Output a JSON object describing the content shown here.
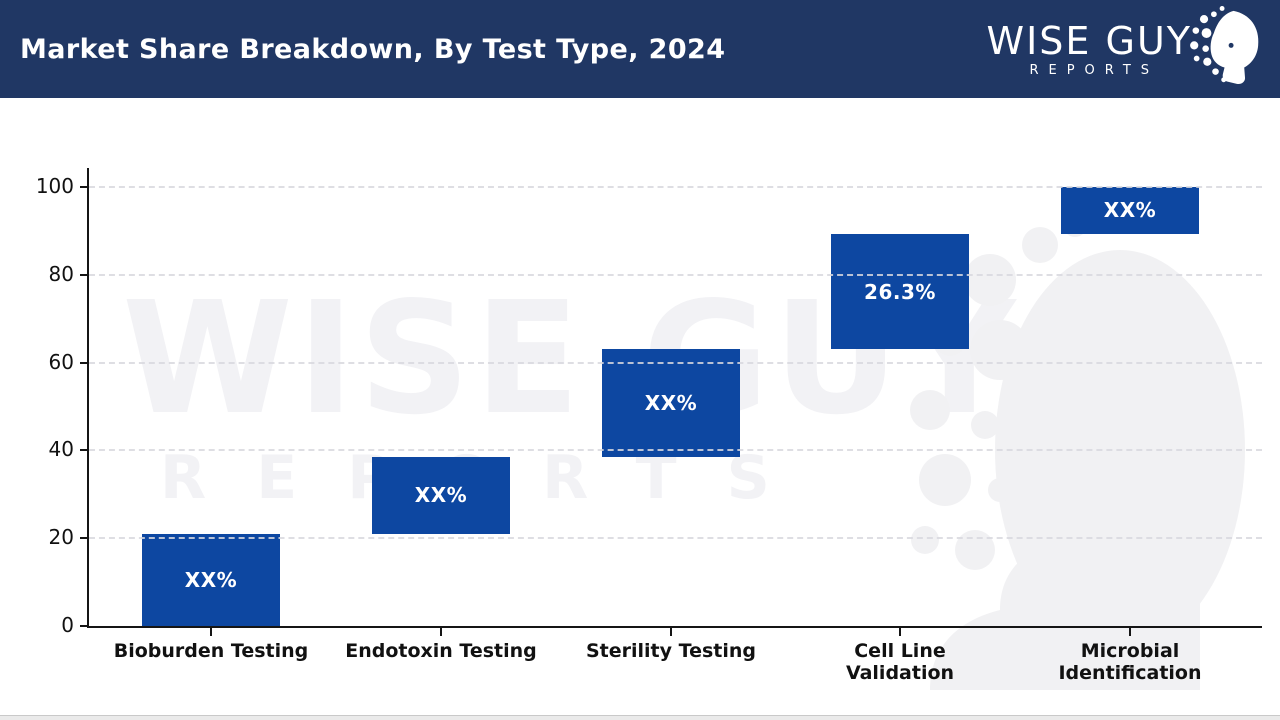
{
  "header": {
    "title": "Market Share Breakdown, By Test Type, 2024",
    "bg_color": "#203764",
    "logo": {
      "line1": "WISE GUY",
      "line2": "REPORTS"
    }
  },
  "watermark": {
    "line1": "WISE GUY",
    "line2": "REPORTS"
  },
  "chart_data": {
    "type": "bar",
    "subtype": "waterfall",
    "title": "Market Share Breakdown, By Test Type, 2024",
    "categories": [
      "Bioburden Testing",
      "Endotoxin Testing",
      "Sterility Testing",
      "Cell Line Validation",
      "Microbial Identification"
    ],
    "category_label_lines": [
      [
        "Bioburden Testing"
      ],
      [
        "Endotoxin Testing"
      ],
      [
        "Sterility Testing"
      ],
      [
        "Cell Line",
        "Validation"
      ],
      [
        "Microbial",
        "Identification"
      ]
    ],
    "segments": [
      {
        "category": "Bioburden Testing",
        "label": "XX%",
        "start": 0,
        "end": 21
      },
      {
        "category": "Endotoxin Testing",
        "label": "XX%",
        "start": 21,
        "end": 38.5
      },
      {
        "category": "Sterility Testing",
        "label": "XX%",
        "start": 38.5,
        "end": 63
      },
      {
        "category": "Cell Line Validation",
        "label": "26.3%",
        "start": 63,
        "end": 89.3,
        "value": 26.3
      },
      {
        "category": "Microbial Identification",
        "label": "XX%",
        "start": 89.3,
        "end": 100
      }
    ],
    "ylim": [
      0,
      100
    ],
    "yticks": [
      0,
      20,
      40,
      60,
      80,
      100
    ],
    "xlabel": "",
    "ylabel": "",
    "grid": true,
    "grid_style": "dashed",
    "legend": false,
    "bar_color": "#0d47a1"
  }
}
